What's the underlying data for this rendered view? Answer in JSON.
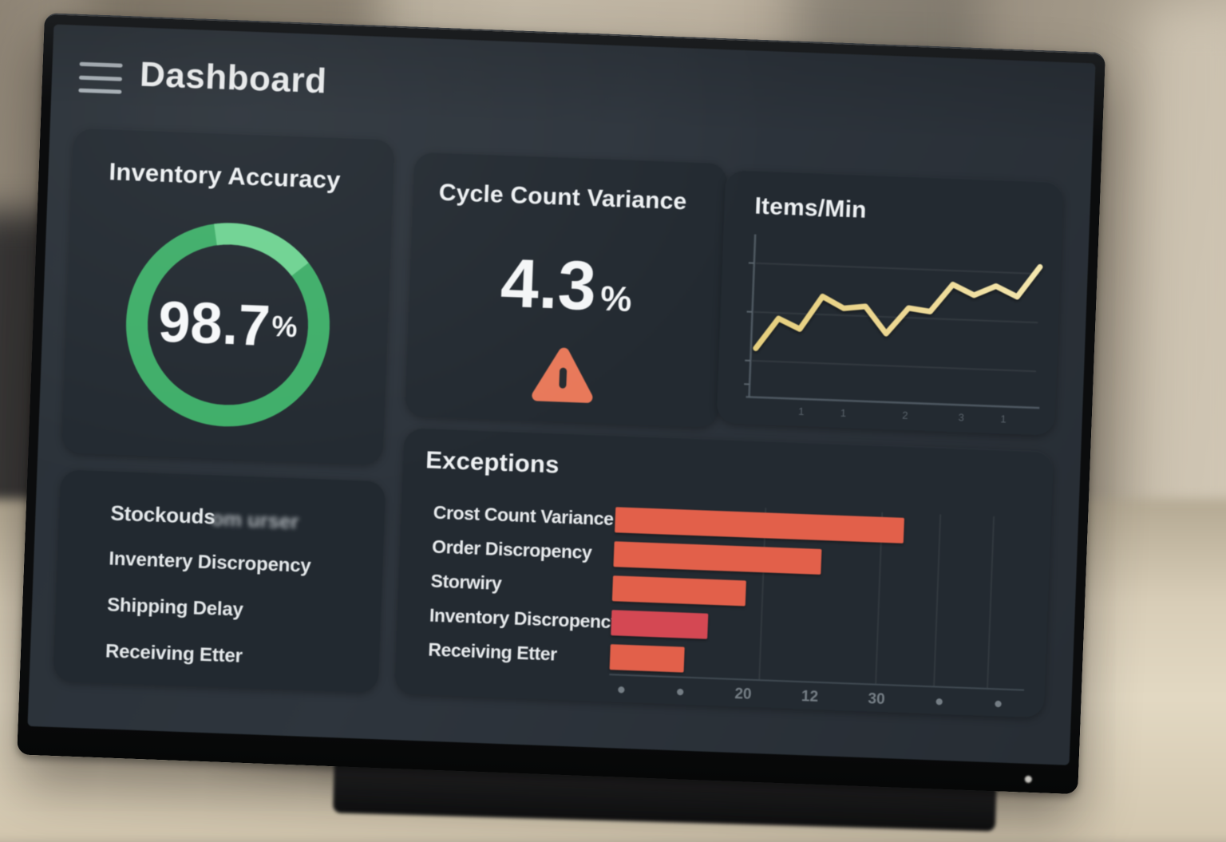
{
  "header": {
    "title": "Dashboard",
    "menu_icon": "hamburger-icon"
  },
  "cards": {
    "inventory_accuracy": {
      "title": "Inventory Accuracy",
      "value": "98.7",
      "unit": "%",
      "ring_color": "#3fae69",
      "ring_highlight": "#6fd392"
    },
    "cycle_count_variance": {
      "title": "Cycle Count Variance",
      "value": "4.3",
      "unit": "%",
      "alert_icon": "warning-triangle-icon",
      "alert_color": "#e8795a"
    },
    "items_per_min": {
      "title": "Items/Min"
    },
    "issues_list": {
      "items": [
        {
          "text": "Stockouds",
          "ghost": "om urser"
        },
        {
          "text": "Inventery Discropency",
          "ghost": ""
        },
        {
          "text": "Shipping Delay",
          "ghost": ""
        },
        {
          "text": "Receiving Etter",
          "ghost": ""
        }
      ]
    },
    "exceptions": {
      "title": "Exceptions"
    }
  },
  "chart_data": [
    {
      "type": "line",
      "title": "Items/Min",
      "x": [
        0,
        1,
        2,
        3,
        4,
        5,
        6,
        7,
        8,
        9,
        10,
        11,
        12,
        13
      ],
      "values": [
        34,
        56,
        49,
        73,
        65,
        67,
        48,
        67,
        65,
        85,
        78,
        85,
        78,
        100
      ],
      "ylim": [
        0,
        110
      ],
      "xlabel": "",
      "ylabel": "",
      "x_ticks": [
        "1",
        "1",
        "2",
        "3",
        "1"
      ],
      "grid_values": [
        95,
        60,
        25
      ],
      "legend": false,
      "line_color": "#eed995"
    },
    {
      "type": "bar",
      "title": "Exceptions",
      "orientation": "horizontal",
      "categories": [
        "Crost Count Variance",
        "Order Discropency",
        "Storwiry",
        "Inventory Discropency",
        "Receiving Etter"
      ],
      "values": [
        39,
        28,
        18,
        13,
        10
      ],
      "xlim": [
        0,
        56
      ],
      "x_ticks": [
        "●",
        "●",
        "20",
        "12",
        "30",
        "●",
        "●"
      ],
      "grid_positions_pct": [
        36,
        64,
        78,
        91
      ],
      "bar_colors": [
        "#e2604a",
        "#e2604a",
        "#e2604a",
        "#d44853",
        "#e2604a"
      ],
      "legend": false
    }
  ],
  "scene": {
    "wall_color": "#b0a694",
    "desk_color": "#d8cdb7",
    "screen_background": "#2c333a"
  }
}
